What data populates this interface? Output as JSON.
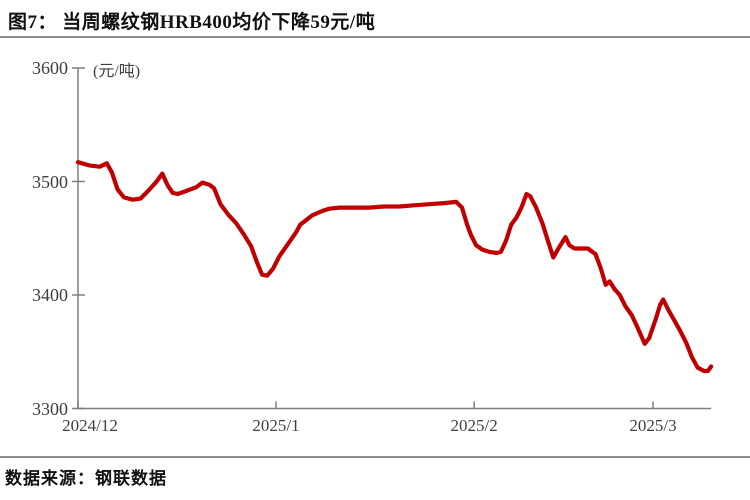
{
  "figure": {
    "title": "图7： 当周螺纹钢HRB400均价下降59元/吨",
    "source": "数据来源：钢联数据",
    "colors": {
      "line": "#c00000",
      "axis": "#7f7f7f",
      "tick_text": "#3f3f3f",
      "rule": "#8c8c8c",
      "title_text": "#111111"
    }
  },
  "chart_data": {
    "type": "line",
    "title": "当周螺纹钢HRB400均价下降59元/吨",
    "ylabel": "(元/吨)",
    "xlabel": "",
    "grid": false,
    "legend": false,
    "ylim": [
      3300,
      3600
    ],
    "y_ticks": [
      3600,
      3500,
      3400,
      3300
    ],
    "x_ticks": [
      {
        "label": "2024/12",
        "day": 0
      },
      {
        "label": "2025/1",
        "day": 31
      },
      {
        "label": "2025/2",
        "day": 62
      },
      {
        "label": "2025/3",
        "day": 90
      }
    ],
    "x_range_days": [
      0,
      99.1
    ],
    "latest_change_note": "当周均价下降59元/吨",
    "series": [
      {
        "name": "螺纹钢HRB400均价",
        "unit": "元/吨",
        "points": [
          [
            0,
            3517
          ],
          [
            1.9,
            3514
          ],
          [
            3.4,
            3513
          ],
          [
            4.5,
            3516
          ],
          [
            5.3,
            3508
          ],
          [
            6.2,
            3493
          ],
          [
            7.2,
            3486
          ],
          [
            8.6,
            3484
          ],
          [
            9.8,
            3485
          ],
          [
            11.2,
            3493
          ],
          [
            12.3,
            3500
          ],
          [
            13.2,
            3507
          ],
          [
            14,
            3497
          ],
          [
            14.8,
            3490
          ],
          [
            15.6,
            3489
          ],
          [
            17.1,
            3492
          ],
          [
            18.5,
            3495
          ],
          [
            19.5,
            3499
          ],
          [
            20.6,
            3497
          ],
          [
            21.3,
            3494
          ],
          [
            22.3,
            3480
          ],
          [
            23.5,
            3471
          ],
          [
            24.8,
            3463
          ],
          [
            26,
            3453
          ],
          [
            27.1,
            3443
          ],
          [
            28,
            3429
          ],
          [
            28.8,
            3418
          ],
          [
            29.6,
            3417
          ],
          [
            30.5,
            3423
          ],
          [
            31.5,
            3434
          ],
          [
            33,
            3446
          ],
          [
            34.1,
            3455
          ],
          [
            34.8,
            3462
          ],
          [
            35.5,
            3465
          ],
          [
            36.6,
            3470
          ],
          [
            38.2,
            3474
          ],
          [
            39.3,
            3476
          ],
          [
            40.9,
            3477
          ],
          [
            43.2,
            3477
          ],
          [
            45.6,
            3477
          ],
          [
            47.9,
            3478
          ],
          [
            50.3,
            3478
          ],
          [
            52.6,
            3479
          ],
          [
            55,
            3480
          ],
          [
            57.3,
            3481
          ],
          [
            59.2,
            3482
          ],
          [
            60.1,
            3477
          ],
          [
            60.9,
            3462
          ],
          [
            61.5,
            3453
          ],
          [
            62.3,
            3444
          ],
          [
            63.3,
            3440
          ],
          [
            64.4,
            3438
          ],
          [
            65.5,
            3437
          ],
          [
            66.2,
            3438
          ],
          [
            67,
            3448
          ],
          [
            67.8,
            3462
          ],
          [
            68.6,
            3468
          ],
          [
            69.4,
            3477
          ],
          [
            70.2,
            3489
          ],
          [
            70.8,
            3487
          ],
          [
            71.7,
            3477
          ],
          [
            72.7,
            3463
          ],
          [
            73.6,
            3447
          ],
          [
            74.4,
            3433
          ],
          [
            75.2,
            3441
          ],
          [
            76.3,
            3451
          ],
          [
            76.9,
            3444
          ],
          [
            77.7,
            3441
          ],
          [
            79.8,
            3441
          ],
          [
            81,
            3436
          ],
          [
            81.8,
            3424
          ],
          [
            82.6,
            3409
          ],
          [
            83.2,
            3412
          ],
          [
            84,
            3405
          ],
          [
            84.8,
            3400
          ],
          [
            85.7,
            3390
          ],
          [
            86.7,
            3382
          ],
          [
            87.6,
            3371
          ],
          [
            88.7,
            3357
          ],
          [
            89.4,
            3362
          ],
          [
            90.5,
            3380
          ],
          [
            91.1,
            3391
          ],
          [
            91.6,
            3396
          ],
          [
            92.4,
            3387
          ],
          [
            93.3,
            3378
          ],
          [
            94.2,
            3369
          ],
          [
            95.2,
            3358
          ],
          [
            96.1,
            3345
          ],
          [
            97,
            3336
          ],
          [
            98,
            3333
          ],
          [
            98.6,
            3333
          ],
          [
            99.1,
            3337
          ]
        ]
      }
    ]
  }
}
